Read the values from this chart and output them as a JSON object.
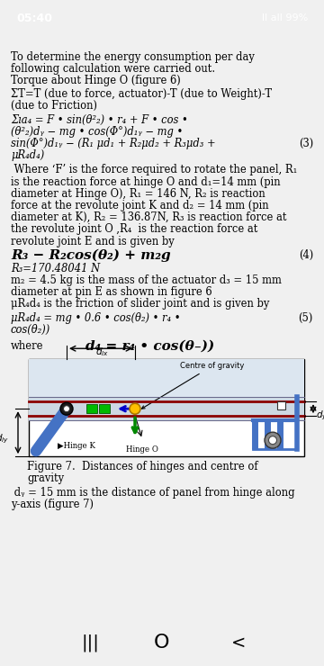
{
  "bg_color": "#f0f0f0",
  "status_bar_bg": "#1a3a5c",
  "status_bar_text": "05:40",
  "status_bar_right": "ll all 99%",
  "body_bg": "#ffffff",
  "text_color": "#000000",
  "para1_lines": [
    "To determine the energy consumption per day",
    "following calculation were carried out.",
    "Torque about Hinge O (figure 6)"
  ],
  "para2_lines": [
    "ΣT=T (due to force, actuator)-T (due to Weight)-T",
    "(due to Friction)"
  ],
  "eq3_lines": [
    "Σıa₄ = F • sin(θ²₂) • r₄ + F • cos •",
    "(θ²₂)dᵧ − mg • cos(Φ°)d₁ᵧ − mg •",
    "sin(Φ°)d₁ᵧ − (R₁ μd₁ + R₂μd₂ + R₃μd₃ +",
    "μR₄d₄)"
  ],
  "eq3_num": "(3)",
  "para3_lines": [
    " Where ‘F’ is the force required to rotate the panel, R₁",
    "is the reaction force at hinge O and d₁=14 mm (pin",
    "diameter at Hinge O), R₁ = 146 N, R₂ is reaction",
    "force at the revolute joint K and d₂ = 14 mm (pin",
    "diameter at K), R₂ = 136.87N, R₃ is reaction force at",
    "the revolute joint O ,R₄  is the reaction force at",
    "revolute joint E and is given by"
  ],
  "eq4": "R₃ − R₂cos(θ₂) + m₂g",
  "eq4_num": "(4)",
  "eq4_sub": "R₃=170.48041 N",
  "para4_lines": [
    "m₂ = 4.5 kg is the mass of the actuator d₃ = 15 mm",
    "diameter at pin E as shown in figure 6",
    "μR₄d₄ is the friction of slider joint and is given by"
  ],
  "eq5_lines": [
    "μR₄d₄ = mg • 0.6 • cos(θ₂) • r₄ •",
    "cos(θ₂))"
  ],
  "eq5_num": "(5)",
  "where_label": "where",
  "where_eq": "d₄ = r₄ • cos(θ₋))",
  "fig_caption_lines": [
    "Figure 7.  Distances of hinges and centre of",
    "gravity"
  ],
  "para5_lines": [
    " dᵧ = 15 mm is the distance of panel from hinge along",
    "y-axis (figure 7)"
  ],
  "nav_icons": [
    "|||",
    "O",
    "<"
  ]
}
